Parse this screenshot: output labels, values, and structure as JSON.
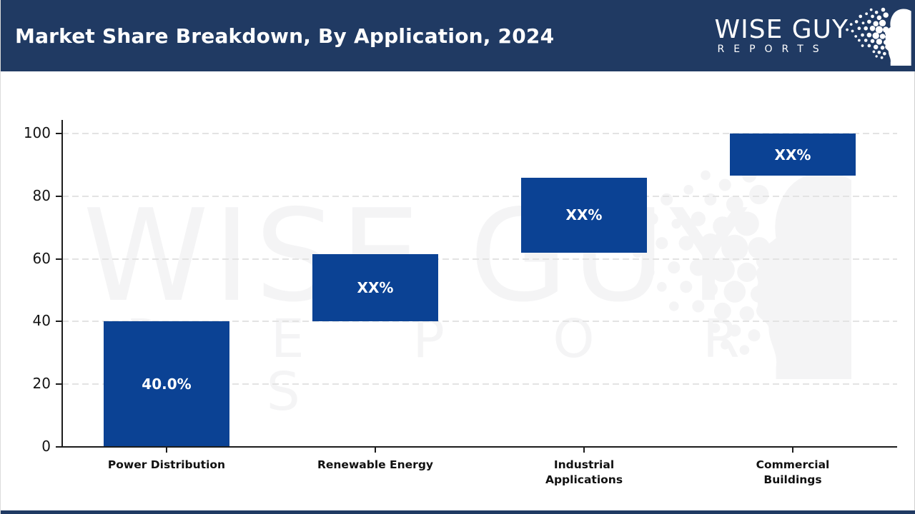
{
  "header": {
    "title": "Market Share Breakdown, By Application, 2024",
    "logo": {
      "line1": "WISE GUY",
      "line2": "REPORTS"
    }
  },
  "watermark": {
    "line1": "WISE GUY",
    "line2": "R E P O R T S"
  },
  "colors": {
    "header_bg": "#203a63",
    "bar_blue": "#0b4294",
    "watermark_gray": "#f4f4f5",
    "grid_gray": "#e3e3e3",
    "axis_black": "#1c1c1c"
  },
  "chart_data": {
    "type": "bar",
    "subtype": "waterfall",
    "title": "Market Share Breakdown, By Application, 2024",
    "xlabel": "",
    "ylabel": "",
    "ylim": [
      0,
      104
    ],
    "yticks": [
      0,
      20,
      40,
      60,
      80,
      100
    ],
    "grid": "horizontal-dashed",
    "legend": "none",
    "categories": [
      "Power Distribution",
      "Renewable Energy",
      "Industrial\nApplications",
      "Commercial\nBuildings"
    ],
    "segments": [
      {
        "category": "Power Distribution",
        "start": 0,
        "end": 40,
        "label": "40.0%"
      },
      {
        "category": "Renewable Energy",
        "start": 40,
        "end": 61.5,
        "label": "XX%"
      },
      {
        "category": "Industrial\nApplications",
        "start": 62,
        "end": 86,
        "label": "XX%"
      },
      {
        "category": "Commercial\nBuildings",
        "start": 86.5,
        "end": 100,
        "label": "XX%"
      }
    ]
  }
}
